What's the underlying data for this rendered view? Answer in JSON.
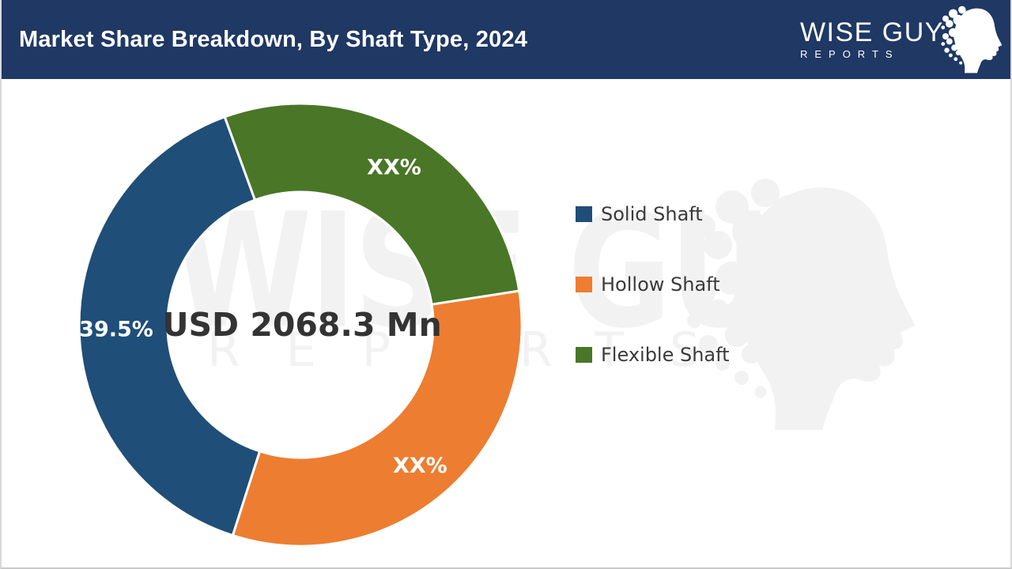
{
  "header": {
    "title": "Market Share Breakdown, By Shaft Type, 2024",
    "logo": {
      "line1": "WISE GUY",
      "line2": "REPORTS"
    }
  },
  "watermark": {
    "line1": "WISE GUY",
    "line2": "REPORTS"
  },
  "chart_data": {
    "type": "pie",
    "subtype": "donut",
    "title": "Market Share Breakdown, By Shaft Type, 2024",
    "center_label": "USD 2068.3 Mn",
    "start_angle_deg": 110,
    "direction": "counterclockwise",
    "inner_radius_ratio": 0.6,
    "legend_position": "right",
    "segments": [
      {
        "name": "Solid Shaft",
        "display_label": "39.5%",
        "value_pct": 39.5,
        "color": "#1f4e78"
      },
      {
        "name": "Hollow Shaft",
        "display_label": "XX%",
        "value_pct": 32.4,
        "color": "#ed7d31"
      },
      {
        "name": "Flexible Shaft",
        "display_label": "XX%",
        "value_pct": 28.1,
        "color": "#4a7627"
      }
    ]
  },
  "colors": {
    "header_bg": "#1f3864",
    "center_text": "#333333",
    "legend_text": "#3a3a3a",
    "watermark": "#f2f2f2",
    "separator": "#ffffff"
  }
}
